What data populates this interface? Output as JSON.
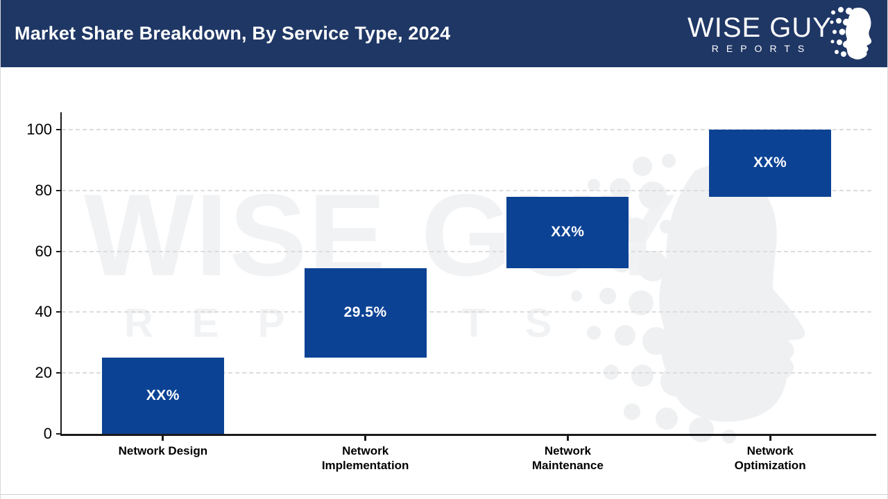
{
  "header": {
    "title": "Market Share Breakdown, By Service Type, 2024",
    "background_color": "#1f3765",
    "logo": {
      "line1": "WISE GUY",
      "line2": "REPORTS"
    }
  },
  "watermark": {
    "line1": "WISE GUY",
    "line2": "REPORTS"
  },
  "chart_data": {
    "type": "bar",
    "subtype": "waterfall-floating-bars",
    "title": "Market Share Breakdown, By Service Type, 2024",
    "categories": [
      "Network Design",
      "Network Implementation",
      "Network Maintenance",
      "Network Optimization"
    ],
    "category_label_lines": [
      "Network Design",
      "Network\nImplementation",
      "Network\nMaintenance",
      "Network\nOptimization"
    ],
    "segments": [
      {
        "category": "Network Design",
        "start": 0,
        "end": 25,
        "label": "XX%"
      },
      {
        "category": "Network Implementation",
        "start": 25,
        "end": 54.5,
        "label": "29.5%"
      },
      {
        "category": "Network Maintenance",
        "start": 54.5,
        "end": 78,
        "label": "XX%"
      },
      {
        "category": "Network Optimization",
        "start": 78,
        "end": 100,
        "label": "XX%"
      }
    ],
    "xlabel": "",
    "ylabel": "",
    "ylim": [
      0,
      100
    ],
    "yticks": [
      0,
      20,
      40,
      60,
      80,
      100
    ],
    "grid": "horizontal-dashed",
    "legend": "none",
    "bar_color": "#0b4294",
    "bar_label_color": "#ffffff",
    "gridline_color": "#dcdcdc",
    "axis_color": "#1a1a1a"
  }
}
